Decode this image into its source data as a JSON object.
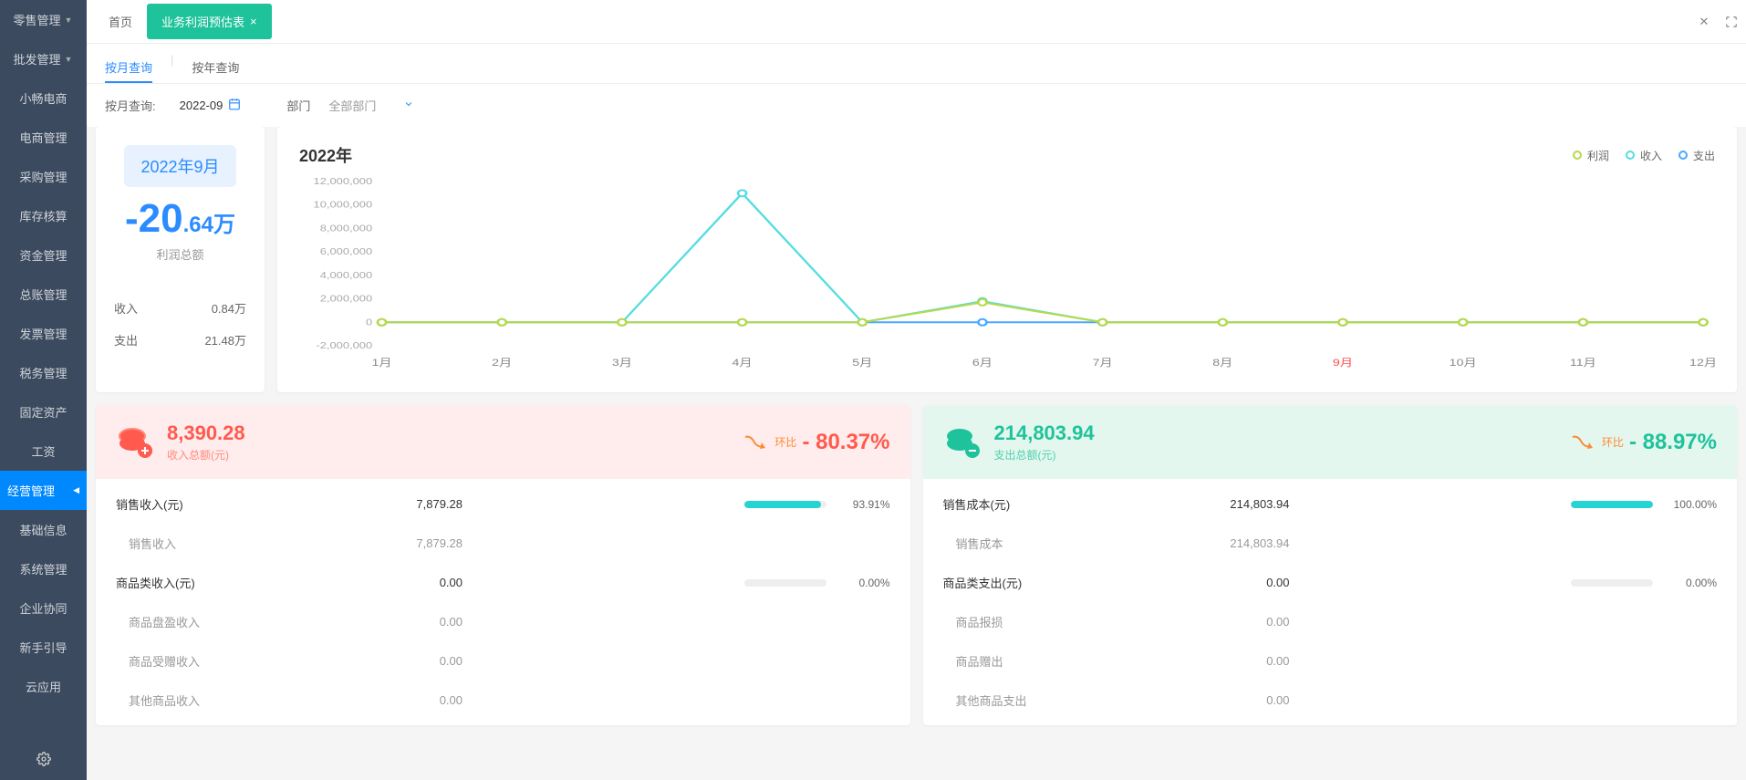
{
  "sidebar": {
    "items": [
      {
        "label": "零售管理",
        "caret": true
      },
      {
        "label": "批发管理",
        "caret": true
      },
      {
        "label": "小畅电商"
      },
      {
        "label": "电商管理"
      },
      {
        "label": "采购管理"
      },
      {
        "label": "库存核算"
      },
      {
        "label": "资金管理"
      },
      {
        "label": "总账管理"
      },
      {
        "label": "发票管理"
      },
      {
        "label": "税务管理"
      },
      {
        "label": "固定资产"
      },
      {
        "label": "工资"
      },
      {
        "label": "经营管理",
        "active": true
      },
      {
        "label": "基础信息"
      },
      {
        "label": "系统管理"
      },
      {
        "label": "企业协同"
      },
      {
        "label": "新手引导"
      },
      {
        "label": "云应用"
      }
    ]
  },
  "tabs": {
    "home": "首页",
    "active": "业务利润预估表"
  },
  "subtabs": {
    "byMonth": "按月查询",
    "byYear": "按年查询"
  },
  "filter": {
    "monthLbl": "按月查询:",
    "monthVal": "2022-09",
    "deptLbl": "部门",
    "deptVal": "全部部门"
  },
  "summary": {
    "monthTitle": "2022年9月",
    "profitInt": "-20",
    "profitDec": ".64万",
    "profitLbl": "利润总额",
    "incomeLbl": "收入",
    "incomeVal": "0.84万",
    "expenseLbl": "支出",
    "expenseVal": "21.48万"
  },
  "chart": {
    "title": "2022年",
    "legend": {
      "profit": "利润",
      "income": "收入",
      "expense": "支出"
    },
    "colors": {
      "profit": "#b8d94a",
      "income": "#53dde0",
      "expense": "#4aa8ff"
    },
    "ylabels": [
      "12,000,000",
      "10,000,000",
      "8,000,000",
      "6,000,000",
      "4,000,000",
      "2,000,000",
      "0",
      "-2,000,000"
    ],
    "ymax": 12000000,
    "ymin": -2000000,
    "xlabels": [
      "1月",
      "2月",
      "3月",
      "4月",
      "5月",
      "6月",
      "7月",
      "8月",
      "9月",
      "10月",
      "11月",
      "12月"
    ],
    "highlight_x": 8,
    "series": {
      "profit": [
        0,
        0,
        0,
        0,
        0,
        1700000,
        0,
        0,
        0,
        0,
        0,
        0
      ],
      "income": [
        0,
        0,
        0,
        11000000,
        0,
        1800000,
        0,
        0,
        0,
        0,
        0,
        0
      ],
      "expense": [
        0,
        0,
        0,
        0,
        0,
        0,
        0,
        0,
        0,
        0,
        0,
        0
      ]
    }
  },
  "income": {
    "total": "8,390.28",
    "totalLbl": "收入总额(元)",
    "hbLbl": "环比",
    "hbPct": "- 80.37%",
    "color": "#ff5a4d",
    "rows": [
      {
        "lbl": "销售收入(元)",
        "val": "7,879.28",
        "pct": "93.91%",
        "bar": 93.91
      },
      {
        "lbl": "销售收入",
        "val": "7,879.28",
        "sub": true
      },
      {
        "lbl": "商品类收入(元)",
        "val": "0.00",
        "pct": "0.00%",
        "bar": 0
      },
      {
        "lbl": "商品盘盈收入",
        "val": "0.00",
        "sub": true
      },
      {
        "lbl": "商品受赠收入",
        "val": "0.00",
        "sub": true
      },
      {
        "lbl": "其他商品收入",
        "val": "0.00",
        "sub": true
      }
    ]
  },
  "expense": {
    "total": "214,803.94",
    "totalLbl": "支出总额(元)",
    "hbLbl": "环比",
    "hbPct": "- 88.97%",
    "color": "#1fc39b",
    "rows": [
      {
        "lbl": "销售成本(元)",
        "val": "214,803.94",
        "pct": "100.00%",
        "bar": 100
      },
      {
        "lbl": "销售成本",
        "val": "214,803.94",
        "sub": true
      },
      {
        "lbl": "商品类支出(元)",
        "val": "0.00",
        "pct": "0.00%",
        "bar": 0
      },
      {
        "lbl": "商品报损",
        "val": "0.00",
        "sub": true
      },
      {
        "lbl": "商品赠出",
        "val": "0.00",
        "sub": true
      },
      {
        "lbl": "其他商品支出",
        "val": "0.00",
        "sub": true
      }
    ]
  }
}
